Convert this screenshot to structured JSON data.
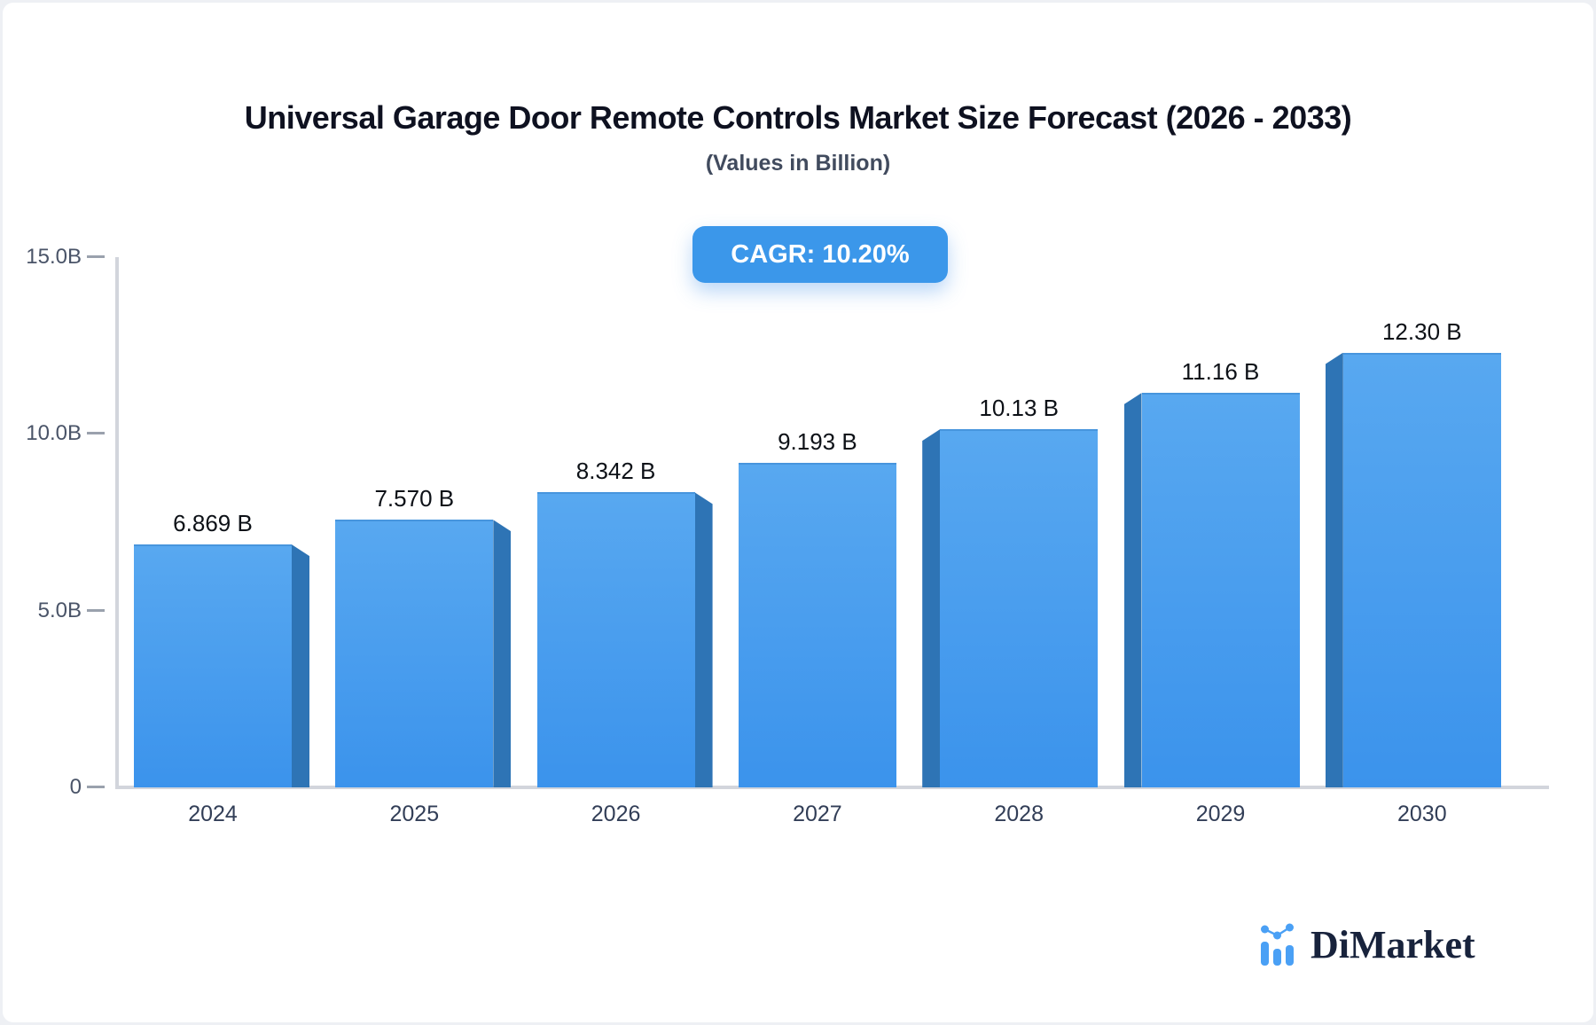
{
  "header": {
    "title": "Universal Garage Door Remote Controls Market Size Forecast (2026 - 2033)",
    "subtitle": "(Values in Billion)",
    "cagr_badge": "CAGR: 10.20%"
  },
  "chart_data": {
    "type": "bar",
    "title": "Universal Garage Door Remote Controls Market Size Forecast (2026 - 2033)",
    "subtitle": "(Values in Billion)",
    "cagr_percent": 10.2,
    "categories": [
      "2024",
      "2025",
      "2026",
      "2027",
      "2028",
      "2029",
      "2030"
    ],
    "values": [
      6.869,
      7.57,
      8.342,
      9.193,
      10.13,
      11.16,
      12.3
    ],
    "value_labels": [
      "6.869 B",
      "7.570 B",
      "8.342 B",
      "9.193 B",
      "10.13 B",
      "11.16 B",
      "12.30 B"
    ],
    "unit": "Billion",
    "ylim": [
      0,
      15
    ],
    "y_ticks": [
      {
        "value": 15,
        "label": "15.0B"
      },
      {
        "value": 10,
        "label": "10.0B"
      },
      {
        "value": 5,
        "label": "5.0B"
      },
      {
        "value": 0,
        "label": "0"
      }
    ],
    "grid": false,
    "legend": null,
    "colors": {
      "bar_face_top": "#58a8f0",
      "bar_face_bottom": "#3b93ec",
      "bar_face_edge": "#4795dd",
      "bar_side": "#2e74b5",
      "axis_line": "#d2d5dc",
      "tick_dash": "#9aa1ad",
      "tick_label": "#4a5468",
      "year_label": "#323e57",
      "value_label": "#0d1117",
      "badge": "#3b97ea"
    }
  },
  "footer": {
    "brand": "DiMarket",
    "logo_icon": "mini-bar-chart-icon",
    "logo_color": "#4aa0f5",
    "brand_color": "#18233c"
  }
}
